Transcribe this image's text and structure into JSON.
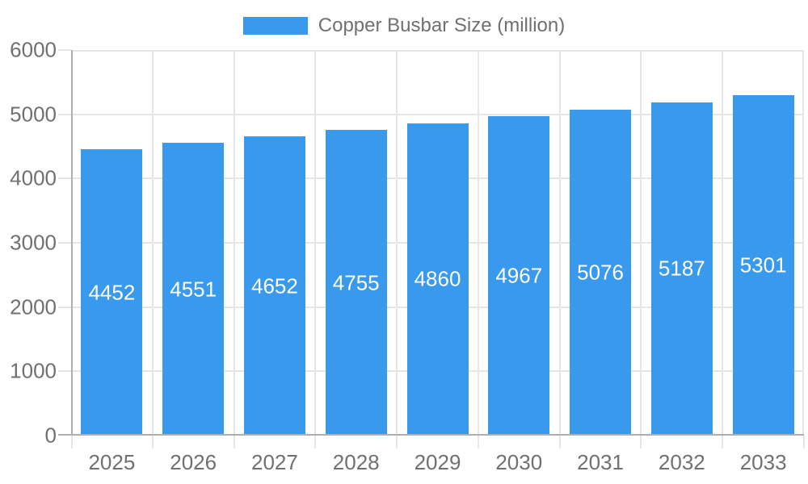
{
  "chart_data": {
    "type": "bar",
    "title": "",
    "legend": {
      "label": "Copper Busbar Size (million)",
      "position": "top-center"
    },
    "categories": [
      "2025",
      "2026",
      "2027",
      "2028",
      "2029",
      "2030",
      "2031",
      "2032",
      "2033"
    ],
    "values": [
      4452,
      4551,
      4652,
      4755,
      4860,
      4967,
      5076,
      5187,
      5301
    ],
    "xlabel": "",
    "ylabel": "",
    "ylim": [
      0,
      6000
    ],
    "yticks": [
      0,
      1000,
      2000,
      3000,
      4000,
      5000,
      6000
    ],
    "grid": true,
    "value_labels_position": "center-inside-bars",
    "colors": {
      "bar": "#3999EC",
      "grid": "#E6E6E6",
      "axis": "#AFAFAF",
      "text": "#707070",
      "value_label": "#FFFFFF"
    }
  }
}
